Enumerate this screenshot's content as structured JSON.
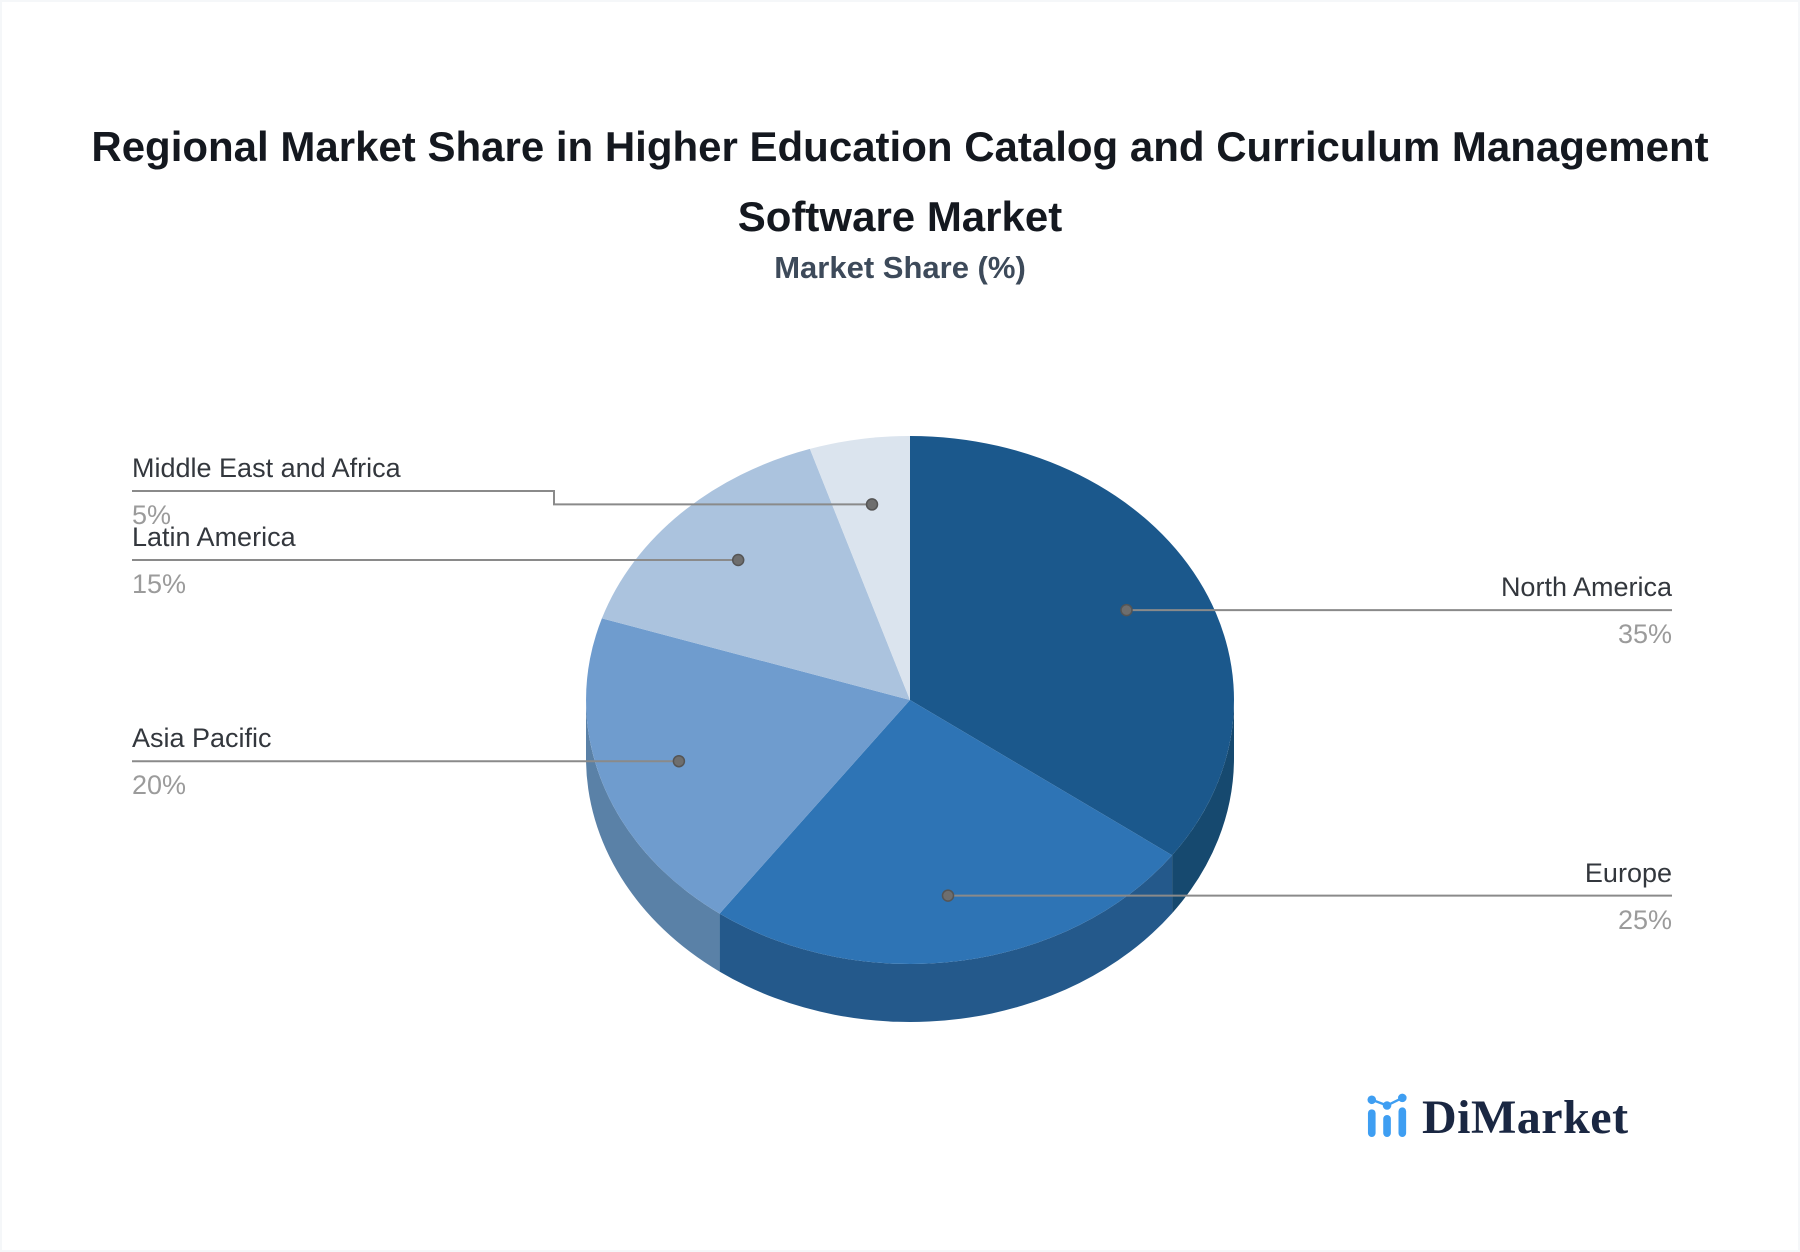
{
  "title": {
    "line1": "Regional Market Share in Higher Education Catalog and Curriculum Management",
    "line2": "Software Market"
  },
  "subtitle": "Market Share (%)",
  "chart_data": {
    "type": "pie",
    "effect": "3d",
    "title": "Regional Market Share in Higher Education Catalog and Curriculum Management Software Market",
    "subtitle": "Market Share (%)",
    "unit": "%",
    "labels": [
      "North America",
      "Europe",
      "Asia Pacific",
      "Latin America",
      "Middle East and Africa"
    ],
    "values": [
      35,
      25,
      20,
      15,
      5
    ],
    "value_labels": [
      "35%",
      "25%",
      "20%",
      "15%",
      "5%"
    ],
    "colors": [
      "#1b588c",
      "#2e74b5",
      "#6f9cce",
      "#abc3de",
      "#dbe4ee"
    ],
    "side_colors": [
      "#16496f",
      "#24598b",
      "#5a81a7",
      "#8aa6c3",
      "#b6c5d6"
    ],
    "label_color": "#33373d",
    "value_label_color": "#9b9b9b",
    "leader_line_color": "#8a8a8a",
    "start_angle_deg": 90,
    "direction": "clockwise",
    "legend_position": "callouts"
  },
  "logo": {
    "text": "DiMarket",
    "text_color": "#1a2742",
    "icon": "bars-trend-icon",
    "icon_color": "#3e9ef2"
  }
}
